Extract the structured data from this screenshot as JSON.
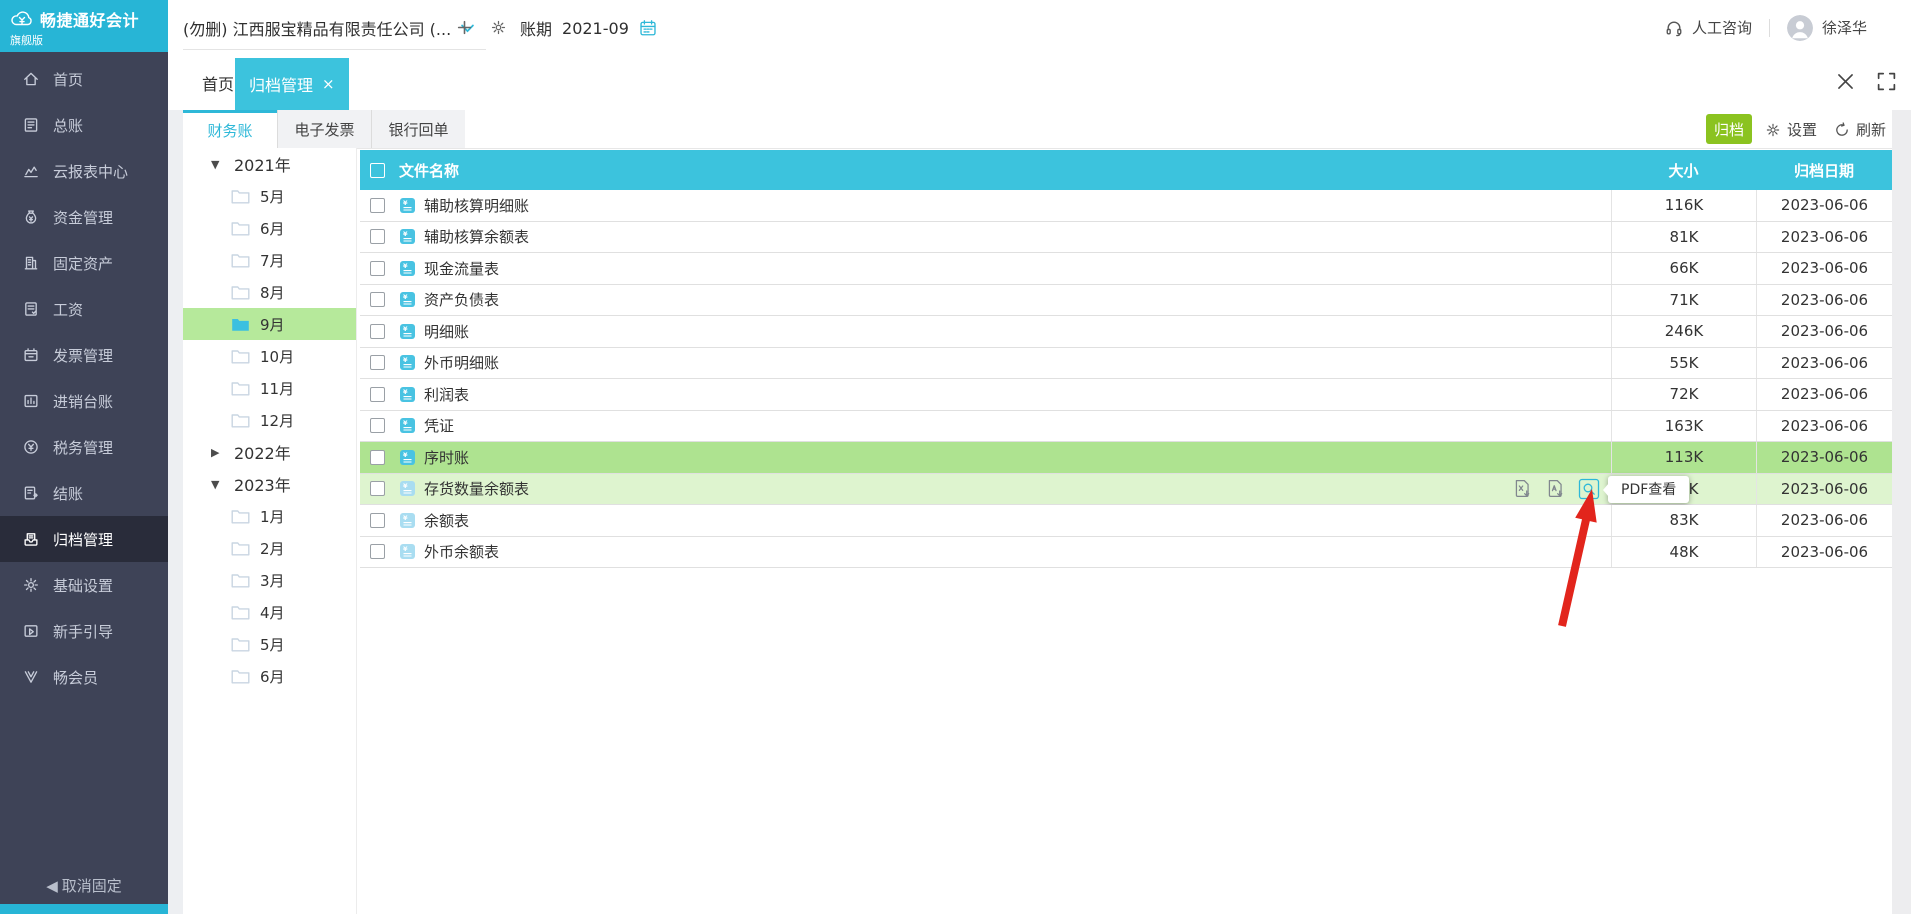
{
  "app": {
    "logo_title": "畅捷通好会计",
    "logo_subtitle": "旗舰版",
    "company": "(勿删) 江西服宝精品有限责任公司 (...",
    "period_label": "账期",
    "period_value": "2021-09",
    "support": "人工咨询",
    "user": "徐泽华"
  },
  "sidebar": {
    "items": [
      {
        "label": "首页",
        "icon": "home-icon",
        "active": false
      },
      {
        "label": "总账",
        "icon": "ledger-icon",
        "active": false
      },
      {
        "label": "云报表中心",
        "icon": "cloud-report-icon",
        "active": false
      },
      {
        "label": "资金管理",
        "icon": "funds-icon",
        "active": false
      },
      {
        "label": "固定资产",
        "icon": "fixed-assets-icon",
        "active": false
      },
      {
        "label": "工资",
        "icon": "salary-icon",
        "active": false
      },
      {
        "label": "发票管理",
        "icon": "invoice-icon",
        "active": false
      },
      {
        "label": "进销台账",
        "icon": "trade-ledger-icon",
        "active": false
      },
      {
        "label": "税务管理",
        "icon": "tax-icon",
        "active": false
      },
      {
        "label": "结账",
        "icon": "closing-icon",
        "active": false
      },
      {
        "label": "归档管理",
        "icon": "archive-icon",
        "active": true
      },
      {
        "label": "基础设置",
        "icon": "settings-icon",
        "active": false
      },
      {
        "label": "新手引导",
        "icon": "guide-icon",
        "active": false
      },
      {
        "label": "畅会员",
        "icon": "member-icon",
        "active": false
      }
    ],
    "unpin_label": "取消固定"
  },
  "tabs": [
    {
      "label": "首页",
      "active": false,
      "closable": false
    },
    {
      "label": "归档管理",
      "active": true,
      "closable": true
    }
  ],
  "subtabs": [
    "财务账",
    "电子发票",
    "银行回单"
  ],
  "toolbar": {
    "archive_label": "归档",
    "settings_label": "设置",
    "refresh_label": "刷新"
  },
  "tree": {
    "years": [
      {
        "label": "2021年",
        "expanded": true,
        "selected_month": "9月",
        "months": [
          "5月",
          "6月",
          "7月",
          "8月",
          "9月",
          "10月",
          "11月",
          "12月"
        ]
      },
      {
        "label": "2022年",
        "expanded": false,
        "months": []
      },
      {
        "label": "2023年",
        "expanded": true,
        "months": [
          "1月",
          "2月",
          "3月",
          "4月",
          "5月",
          "6月"
        ]
      }
    ]
  },
  "table": {
    "columns": [
      "文件名称",
      "大小",
      "归档日期"
    ],
    "rows": [
      {
        "name": "辅助核算明细账",
        "size": "116K",
        "date": "2023-06-06",
        "state": ""
      },
      {
        "name": "辅助核算余额表",
        "size": "81K",
        "date": "2023-06-06",
        "state": ""
      },
      {
        "name": "现金流量表",
        "size": "66K",
        "date": "2023-06-06",
        "state": ""
      },
      {
        "name": "资产负债表",
        "size": "71K",
        "date": "2023-06-06",
        "state": ""
      },
      {
        "name": "明细账",
        "size": "246K",
        "date": "2023-06-06",
        "state": ""
      },
      {
        "name": "外币明细账",
        "size": "55K",
        "date": "2023-06-06",
        "state": ""
      },
      {
        "name": "利润表",
        "size": "72K",
        "date": "2023-06-06",
        "state": ""
      },
      {
        "name": "凭证",
        "size": "163K",
        "date": "2023-06-06",
        "state": ""
      },
      {
        "name": "序时账",
        "size": "113K",
        "date": "2023-06-06",
        "state": "selected"
      },
      {
        "name": "存货数量余额表",
        "size": "52K",
        "date": "2023-06-06",
        "state": "hover",
        "light_icon": true
      },
      {
        "name": "余额表",
        "size": "83K",
        "date": "2023-06-06",
        "state": "",
        "light_icon": true
      },
      {
        "name": "外币余额表",
        "size": "48K",
        "date": "2023-06-06",
        "state": "",
        "light_icon": true
      }
    ]
  },
  "row_actions": {
    "tooltip": "PDF查看",
    "icons": [
      "export-excel-icon",
      "export-pdf-icon",
      "pdf-preview-icon"
    ]
  },
  "glyphs": {
    "close": "×",
    "collapse": "◀",
    "expanded": "▼",
    "collapsed": "▶"
  },
  "colors": {
    "accent": "#2eb8d8",
    "logo_bg": "#27b5d6",
    "table_header": "#3cc3dd",
    "archive_button": "#8bc320",
    "row_selected": "#aee390",
    "row_hover": "#def4cf",
    "tree_selected": "#b6e99b",
    "sidebar_bg": "#3e4357",
    "annotation_arrow": "#e2251c"
  }
}
